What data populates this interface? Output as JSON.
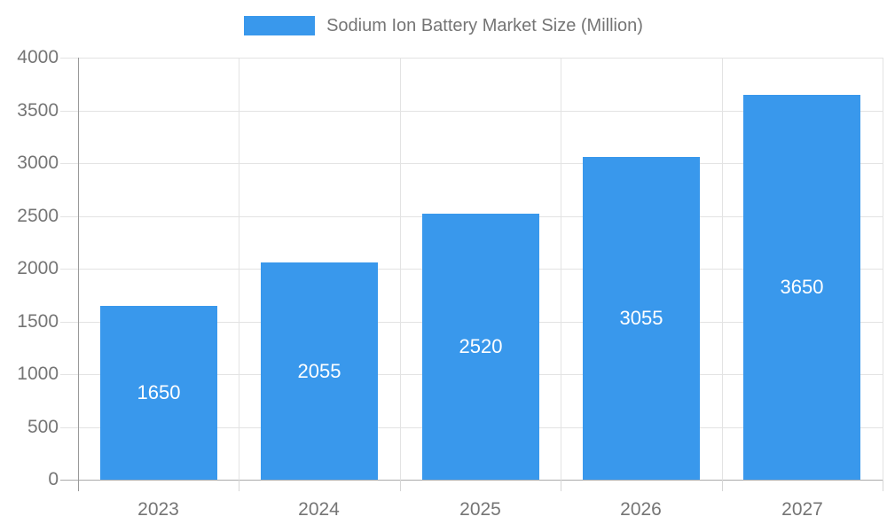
{
  "chart_data": {
    "type": "bar",
    "title": "Sodium Ion Battery Market Size (Million)",
    "legend_position": "top",
    "legend_entries": [
      "Sodium Ion Battery Market Size (Million)"
    ],
    "categories": [
      "2023",
      "2024",
      "2025",
      "2026",
      "2027"
    ],
    "series": [
      {
        "name": "Sodium Ion Battery Market Size (Million)",
        "values": [
          1650,
          2055,
          2520,
          3055,
          3650
        ]
      }
    ],
    "value_labels": [
      "1650",
      "2055",
      "2520",
      "3055",
      "3650"
    ],
    "xlabel": "",
    "ylabel": "",
    "ylim": [
      0,
      4000
    ],
    "yticks": [
      0,
      500,
      1000,
      1500,
      2000,
      2500,
      3000,
      3500,
      4000
    ],
    "grid": true,
    "colors": {
      "bar": "#3998EC",
      "axis_line": "#999999",
      "baseline": "#ababab",
      "gridline": "#e3e3e3",
      "boundary_tick": "#d6d6d6",
      "axis_text": "#757575",
      "value_label_text": "#ffffff",
      "background": "#ffffff"
    }
  }
}
